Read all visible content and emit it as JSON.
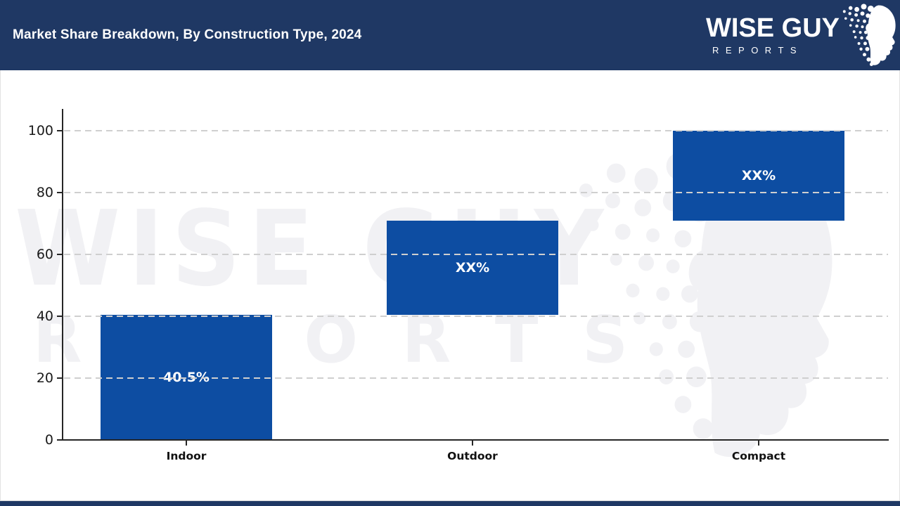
{
  "header": {
    "title": "Market Share Breakdown, By Construction Type, 2024",
    "logo": {
      "line1": "WISE GUY",
      "line2": "REPORTS"
    }
  },
  "watermark": {
    "line1": "WISE GUY",
    "line2": "R E P O R T S"
  },
  "colors": {
    "banner_bg": "#1f3864",
    "footer_bg": "#1f3864",
    "bar": "#0d4da2",
    "bar_label": "#ffffff",
    "title_text": "#ffffff",
    "gridline": "#cfcfcf",
    "axis": "#262626",
    "watermark": "#f1f1f4"
  },
  "chart_data": {
    "type": "bar",
    "subtype": "waterfall",
    "title": "Market Share Breakdown, By Construction Type, 2024",
    "categories": [
      "Indoor",
      "Outdoor",
      "Compact"
    ],
    "bars": [
      {
        "category": "Indoor",
        "start": 0,
        "end": 40.5,
        "label": "40.5%"
      },
      {
        "category": "Outdoor",
        "start": 40.5,
        "end": 71,
        "label": "XX%"
      },
      {
        "category": "Compact",
        "start": 71,
        "end": 100,
        "label": "XX%"
      }
    ],
    "xlabel": "",
    "ylabel": "",
    "ylim": [
      0,
      100
    ],
    "yticks": [
      0,
      20,
      40,
      60,
      80,
      100
    ],
    "grid": "horizontal dashed",
    "legend": "none"
  }
}
